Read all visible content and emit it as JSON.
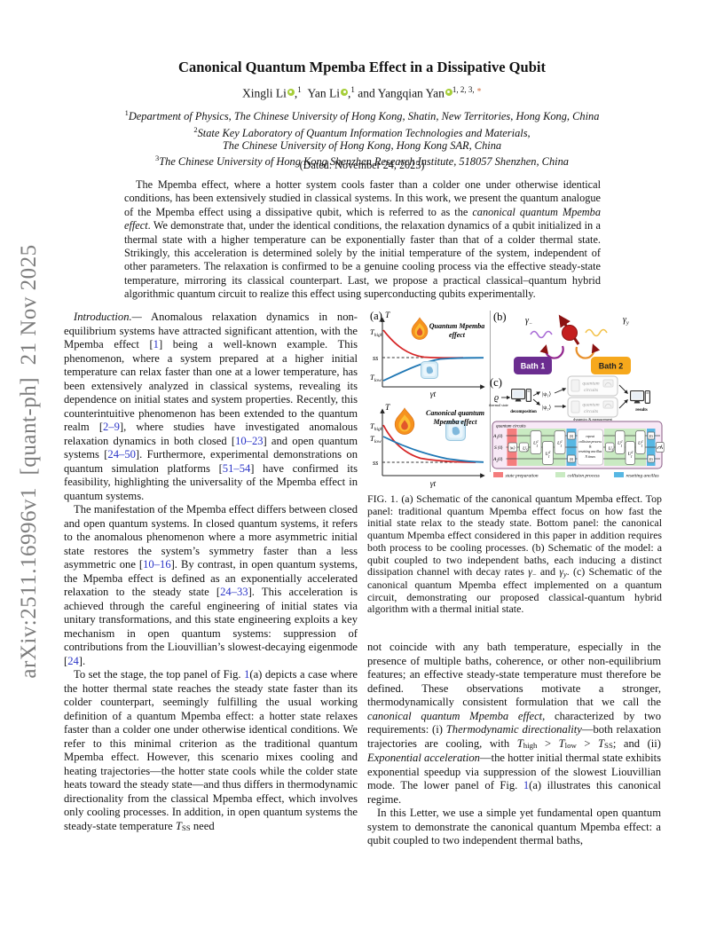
{
  "watermark": {
    "text": "arXiv:2511.16996v1  [quant-ph]  21 Nov 2025"
  },
  "header": {
    "title": "Canonical Quantum Mpemba Effect in a Dissipative Qubit",
    "authors": {
      "a1_name": "Xingli Li",
      "a1_comma": ",",
      "a1_sup": "1",
      "a2_name": "Yan Li",
      "a2_comma": ",",
      "a2_sup": "1",
      "conj": " and ",
      "a3_name": "Yangqian Yan",
      "a3_sup": "1, 2, 3, ",
      "a3_star": "∗"
    },
    "affiliations": [
      {
        "sup": "1",
        "text": "Department of Physics, The Chinese University of Hong Kong, Shatin, New Territories, Hong Kong, China"
      },
      {
        "sup": "2",
        "text": "State Key Laboratory of Quantum Information Technologies and Materials,"
      },
      {
        "sup": "",
        "text": "The Chinese University of Hong Kong, Hong Kong SAR, China"
      },
      {
        "sup": "3",
        "text": "The Chinese University of Hong Kong Shenzhen Research Institute, 518057 Shenzhen, China"
      }
    ],
    "date": "(Dated: November 24, 2025)"
  },
  "abstract": [
    "The Mpemba effect, where a hotter system cools faster than a colder one under otherwise identical conditions, has been extensively studied in classical systems. In this work, we present the quantum analogue of the Mpemba effect using a dissipative qubit, which is referred to as the ",
    {
      "t": "canonical quantum Mpemba effect",
      "s": "i"
    },
    ". We demonstrate that, under the identical conditions, the relaxation dynamics of a qubit initialized in a thermal state with a higher temperature can be exponentially faster than that of a colder thermal state. Strikingly, this acceleration is determined solely by the initial temperature of the system, independent of other parameters. The relaxation is confirmed to be a genuine cooling process via the effective steady-state temperature, mirroring its classical counterpart. Last, we propose a practical classical–quantum hybrid algorithmic quantum circuit to realize this effect using superconducting qubits experimentally."
  ],
  "body": {
    "p1": [
      {
        "t": "Introduction.—",
        "s": "i"
      },
      " Anomalous relaxation dynamics in non-equilibrium systems have attracted significant attention, with the Mpemba effect [",
      {
        "t": "1",
        "s": "c"
      },
      "] being a well-known example. This phenomenon, where a system prepared at a higher initial temperature can relax faster than one at a lower temperature, has been extensively analyzed in classical systems, revealing its dependence on initial states and system properties. Recently, this counterintuitive phenomenon has been extended to the quantum realm [",
      {
        "t": "2–9",
        "s": "c"
      },
      "], where studies have investigated anomalous relaxation dynamics in both closed [",
      {
        "t": "10–23",
        "s": "c"
      },
      "] and open quantum systems [",
      {
        "t": "24–50",
        "s": "c"
      },
      "]. Furthermore, experimental demonstrations on quantum simulation platforms [",
      {
        "t": "51–54",
        "s": "c"
      },
      "] have confirmed its feasibility, highlighting the universality of the Mpemba effect in quantum systems."
    ],
    "p2": [
      "The manifestation of the Mpemba effect differs between closed and open quantum systems.  In closed quantum systems, it refers to the anomalous phenomenon where a more asymmetric initial state restores the system’s symmetry faster than a less asymmetric one [",
      {
        "t": "10–16",
        "s": "c"
      },
      "].  By contrast, in open quantum systems, the Mpemba effect is defined as an exponentially accelerated relaxation to the steady state [",
      {
        "t": "24–33",
        "s": "c"
      },
      "]. This acceleration is achieved through the careful engineering of initial states via unitary transformations, and this state engineering exploits a key mechanism in open quantum systems: suppression of contributions from the Liouvillian’s slowest-decaying eigenmode [",
      {
        "t": "24",
        "s": "c"
      },
      "]."
    ],
    "p3": [
      "To set the stage, the top panel of Fig. ",
      {
        "t": "1",
        "s": "c"
      },
      "(a) depicts a case where the hotter thermal state reaches the steady state faster than its colder counterpart, seemingly fulfilling the usual working definition of a quantum Mpemba effect: a hotter state relaxes faster than a colder one under otherwise identical conditions.  We refer to this minimal criterion as the traditional quantum Mpemba effect.  However, this scenario mixes cooling and heating trajectories—the hotter state cools while the colder state heats toward the steady state—and thus differs in thermodynamic directionality from the classical Mpemba effect, which involves only cooling processes.  In addition, in open quantum systems the steady-state temperature ",
      {
        "t": "T",
        "s": "i"
      },
      {
        "t": "SS",
        "s": "sub"
      },
      " need"
    ],
    "p4": [
      "not coincide with any bath temperature, especially in the presence of multiple baths, coherence, or other non-equilibrium features; an effective steady-state temperature must therefore be defined.  These observations motivate a stronger, thermodynamically consistent formulation that we call the ",
      {
        "t": "canonical quantum Mpemba effect",
        "s": "i"
      },
      ", characterized by two requirements: (i) ",
      {
        "t": "Thermodynamic directionality",
        "s": "i"
      },
      "—both relaxation trajectories are cooling, with ",
      {
        "t": "T",
        "s": "i"
      },
      {
        "t": "high",
        "s": "sub"
      },
      " > ",
      {
        "t": "T",
        "s": "i"
      },
      {
        "t": "low",
        "s": "sub"
      },
      " > ",
      {
        "t": "T",
        "s": "i"
      },
      {
        "t": "SS",
        "s": "sub"
      },
      "; and (ii) ",
      {
        "t": "Exponential acceleration",
        "s": "i"
      },
      "—the hotter initial thermal state exhibits exponential speedup via suppression of the slowest Liouvillian mode.  The lower panel of Fig. ",
      {
        "t": "1",
        "s": "c"
      },
      "(a) illustrates this canonical regime."
    ],
    "p5": [
      "In this Letter, we use a simple yet fundamental open quantum system to demonstrate the canonical quantum Mpemba effect:  a qubit coupled to two independent thermal baths,"
    ]
  },
  "caption": [
    "FIG. 1.   (a) Schematic of the canonical quantum Mpemba effect. Top panel: traditional quantum Mpemba effect focus on how fast the initial state relax to the steady state.  Bottom panel: the canonical quantum Mpemba effect considered in this paper in addition requires both process to be cooling processes.  (b) Schematic of the model: a qubit coupled to two independent baths, each inducing a distinct dissipation channel with decay rates ",
    {
      "t": "γ",
      "s": "i"
    },
    {
      "t": "−",
      "s": "sub"
    },
    " and ",
    {
      "t": "γ",
      "s": "i"
    },
    {
      "t": "y",
      "s": "sub i"
    },
    ".  (c) Schematic of the canonical quantum Mpemba effect implemented on a quantum circuit, demonstrating our proposed classical-quantum hybrid algorithm with a thermal initial state."
  ],
  "figure": {
    "panel_a_label": "(a)",
    "panel_b_label": "(b)",
    "panel_c_label": "(c)",
    "top_plot": {
      "title1": "Quantum Mpemba",
      "title2": "effect",
      "t": "T",
      "t_high": "T",
      "high": "high",
      "ss": "ss",
      "t_low": "T",
      "low": "low",
      "xlabel": "γt"
    },
    "bottom_plot": {
      "title1": "Canonical quantum",
      "title2": "Mpemba effect",
      "t": "T",
      "t_high": "T",
      "high": "high",
      "t_low": "T",
      "low": "low",
      "ss": "ss",
      "xlabel": "γt"
    },
    "panel_b": {
      "g1": "γ",
      "g1sub": "−",
      "g2": "γ",
      "g2sub": "y",
      "bath1": "Bath 1",
      "bath2": "Bath 2"
    },
    "panel_c": {
      "rho": "ϱ",
      "thermal": "thermal state",
      "decomposition": "decomposition",
      "psi1": "|ψ₁⟩",
      "psi2": "|ψ₂⟩",
      "qc1": "quantum",
      "qc2": "circuits",
      "dynamics": "dynamics & measurement",
      "results": "results"
    },
    "circuit": {
      "box_label": "quantum circuits",
      "w1a": "A",
      "w1s": "1",
      "w1k": "|0⟩",
      "w2a": "S",
      "w2k": "|0⟩",
      "w3a": "A",
      "w3s": "2",
      "w3k": "|0⟩",
      "prep_gate": "|ψᵢ⟩",
      "us_main": "U",
      "us_sub": "S",
      "ui_main": "U",
      "ui1_sup": "1",
      "ui2_sup": "2",
      "ui_sub": "I",
      "reset": "|0⟩",
      "mid1": "repeat",
      "mid2": "collision process",
      "mid3": "&",
      "mid4": "resetting ancillas",
      "mid5": "N times",
      "leg1": "state preparation",
      "leg2": "collision process",
      "leg3": "resetting ancillas"
    }
  },
  "colors": {
    "citation_blue": "#2b35c7",
    "watermark_gray": "#7d7d7d",
    "hot_curve_red": "#d62728",
    "cold_curve_blue": "#1f77b4",
    "bath1_purple": "#6b2d90",
    "bath2_amber": "#f6a81c",
    "qubit_red": "#c41e1e",
    "orcid_green": "#a6ce39",
    "state_preparation_red": "#f47d7d",
    "collision_green": "#c9eac2",
    "reset_blue": "#57b7e3",
    "circuit_bg_pink": "#f8e9f6"
  }
}
